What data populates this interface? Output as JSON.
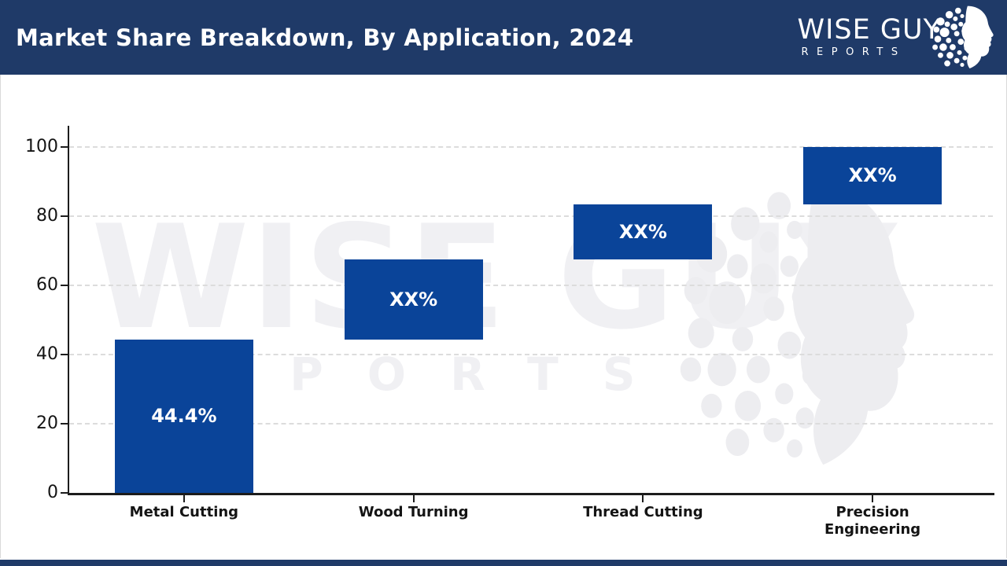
{
  "header": {
    "title": "Market Share Breakdown, By Application, 2024",
    "bg_color": "#1f3a68",
    "logo": {
      "brand": "WISE GUY",
      "sub": "REPORTS"
    }
  },
  "watermark": {
    "brand": "WISE GUY",
    "sub": "REPORTS"
  },
  "footer": {
    "bg_color": "#1f3a68"
  },
  "chart_data": {
    "type": "bar",
    "subtype": "floating-waterfall",
    "title": "Market Share Breakdown, By Application, 2024",
    "categories": [
      "Metal Cutting",
      "Wood Turning",
      "Thread Cutting",
      "Precision Engineering"
    ],
    "tick_labels": [
      "Metal Cutting",
      "Wood Turning",
      "Thread Cutting",
      "Precision\nEngineering"
    ],
    "series": [
      {
        "name": "Market Share (%)",
        "segments": [
          {
            "category": "Metal Cutting",
            "start": 0,
            "end": 44.4,
            "value": 44.4,
            "label": "44.4%"
          },
          {
            "category": "Wood Turning",
            "start": 44.4,
            "end": 67.5,
            "value": 23.1,
            "label": "XX%"
          },
          {
            "category": "Thread Cutting",
            "start": 67.5,
            "end": 83.5,
            "value": 16.0,
            "label": "XX%"
          },
          {
            "category": "Precision Engineering",
            "start": 83.5,
            "end": 100,
            "value": 16.5,
            "label": "XX%"
          }
        ]
      }
    ],
    "yticks": [
      0,
      20,
      40,
      60,
      80,
      100
    ],
    "ylim": [
      0,
      106
    ],
    "xlabel": "",
    "ylabel": "",
    "grid": "dashed-horizontal",
    "legend": "none",
    "bar_color": "#0a4499",
    "bar_label_color": "#ffffff",
    "axis_color": "#1c1c1c",
    "grid_color": "#dcdcdc",
    "tick_label_color": "#141414"
  }
}
